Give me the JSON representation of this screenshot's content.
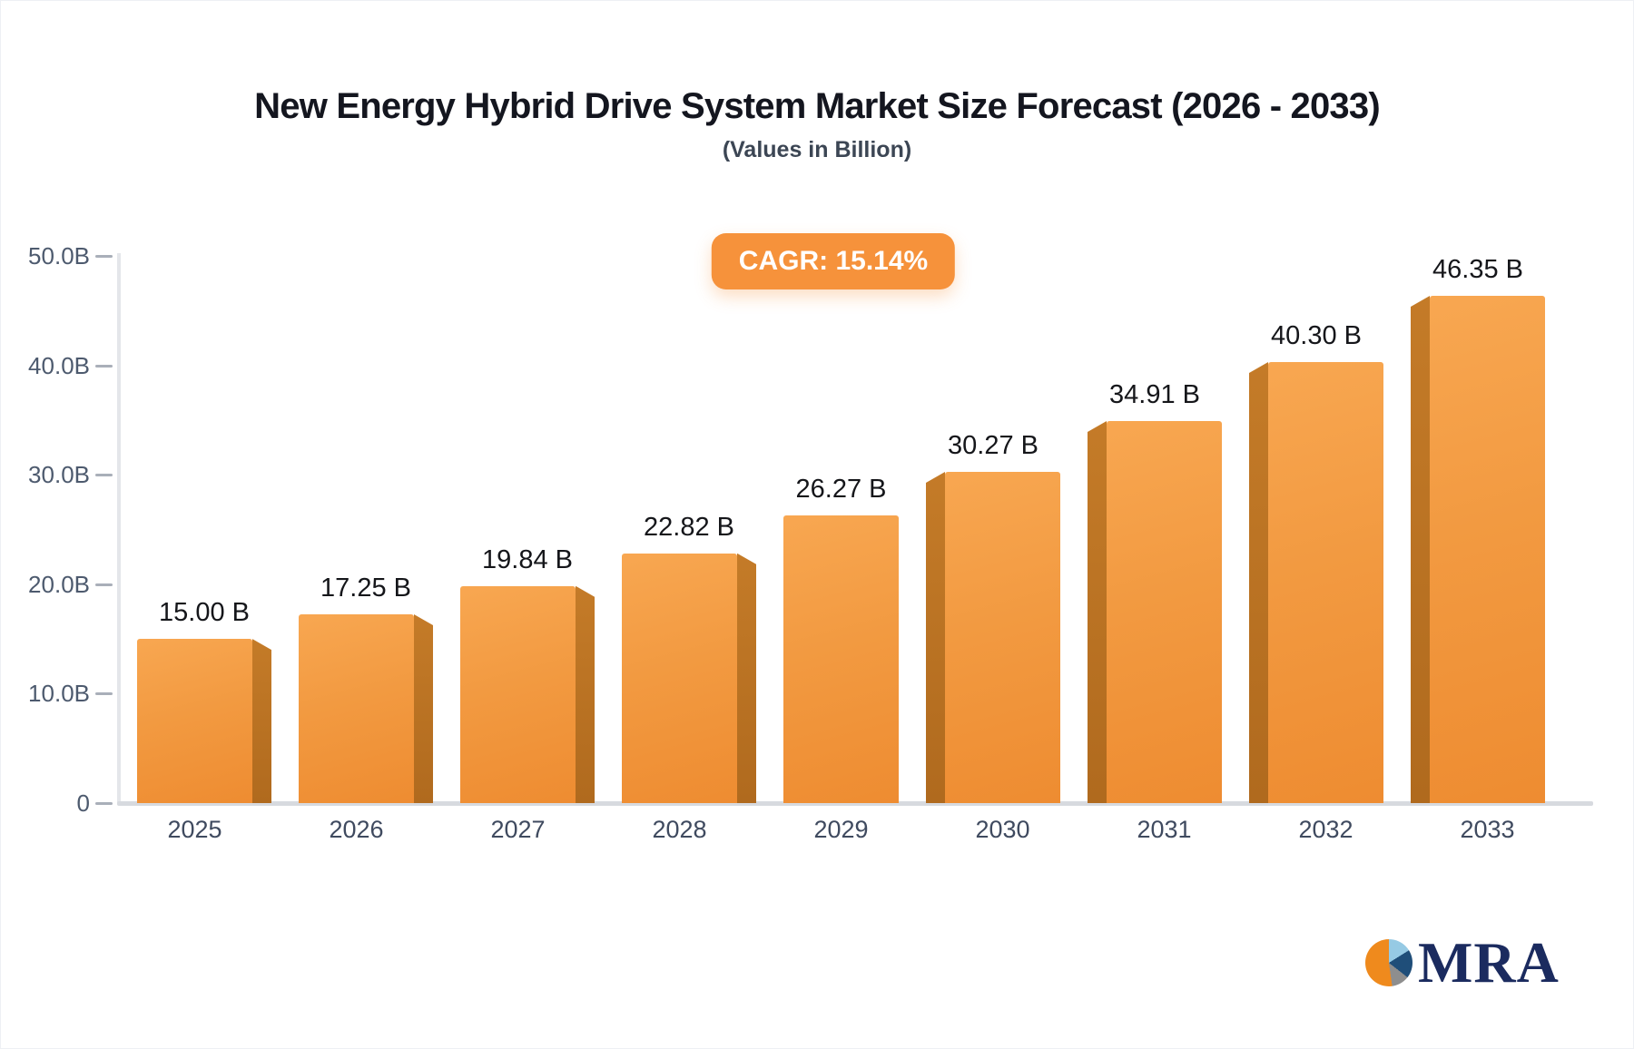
{
  "title": "New Energy Hybrid Drive System Market Size Forecast (2026 - 2033)",
  "subtitle": "(Values in Billion)",
  "badge": {
    "label": "CAGR: 15.14%"
  },
  "logo": {
    "text": "MRA"
  },
  "colors": {
    "accent_orange": "#f6923b",
    "bar_top": "#f8a751",
    "bar_bottom": "#ee8c31",
    "bar_side_dark": "#b06a1e",
    "axis_line": "#d7dadf",
    "tick_text": "#4d5a6e",
    "value_text": "#15161a",
    "logo_navy": "#1b2b5f"
  },
  "chart_data": {
    "type": "bar",
    "title": "New Energy Hybrid Drive System Market Size Forecast (2026 - 2033)",
    "subtitle": "(Values in Billion)",
    "annotation": "CAGR: 15.14%",
    "categories": [
      "2025",
      "2026",
      "2027",
      "2028",
      "2029",
      "2030",
      "2031",
      "2032",
      "2033"
    ],
    "values": [
      15.0,
      17.25,
      19.84,
      22.82,
      26.27,
      30.27,
      34.91,
      40.3,
      46.35
    ],
    "value_labels": [
      "15.00 B",
      "17.25 B",
      "19.84 B",
      "22.82 B",
      "26.27 B",
      "30.27 B",
      "34.91 B",
      "40.30 B",
      "46.35 B"
    ],
    "xlabel": "",
    "ylabel": "",
    "ylim": [
      0,
      50
    ],
    "grid": false,
    "legend": "none",
    "yticks": [
      {
        "label": "50.0B",
        "v": 50
      },
      {
        "label": "40.0B",
        "v": 40
      },
      {
        "label": "30.0B",
        "v": 30
      },
      {
        "label": "20.0B",
        "v": 20
      },
      {
        "label": "10.0B",
        "v": 10
      },
      {
        "label": "0",
        "v": 0
      }
    ]
  }
}
